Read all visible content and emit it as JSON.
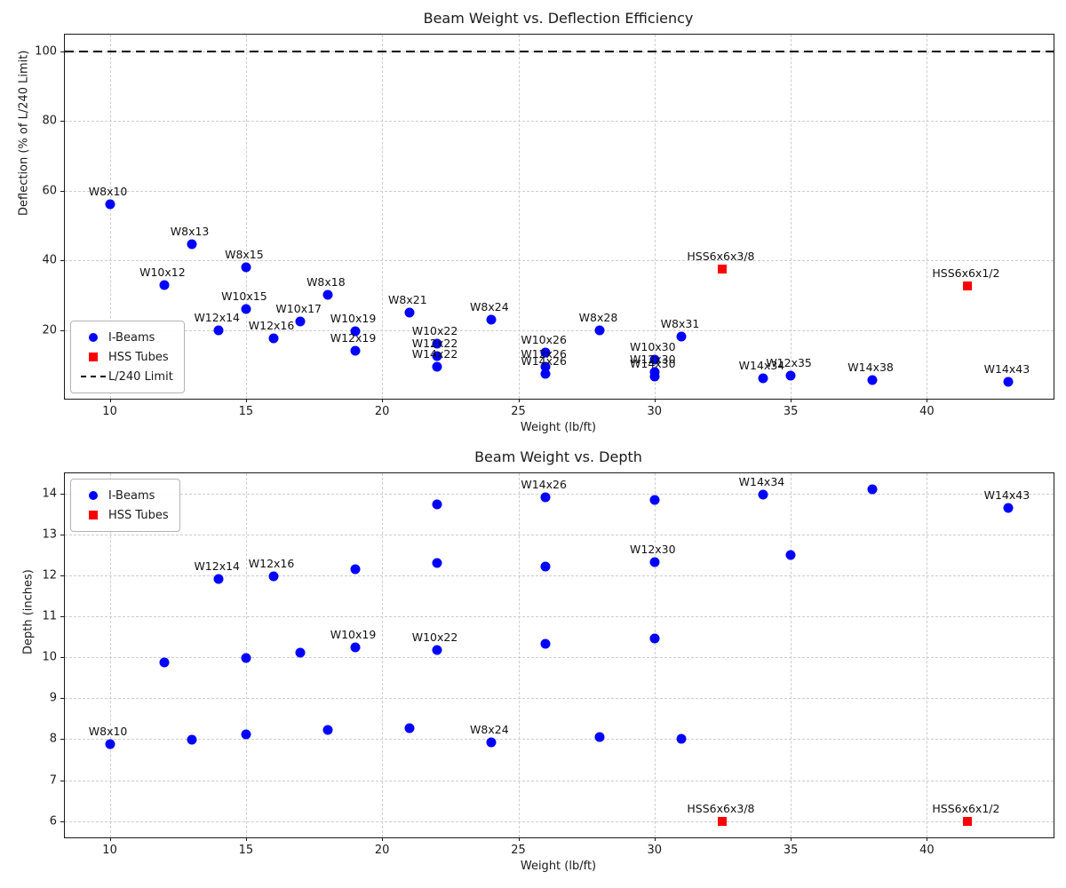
{
  "figure": {
    "background": "#ffffff"
  },
  "colors": {
    "ibeam": "#0000ff",
    "hss": "#ff0000",
    "limit_line": "#000000",
    "grid": "#cdcdcd",
    "text": "#1a1a1a"
  },
  "chart_data": [
    {
      "type": "scatter",
      "title": "Beam Weight vs. Deflection Efficiency",
      "xlabel": "Weight (lb/ft)",
      "ylabel": "Deflection (% of L/240 Limit)",
      "xlim": [
        8.35,
        44.65
      ],
      "ylim": [
        0.25,
        104.75
      ],
      "xticks": [
        10,
        15,
        20,
        25,
        30,
        35,
        40
      ],
      "yticks": [
        20,
        40,
        60,
        80,
        100
      ],
      "grid": true,
      "reference_line": {
        "y": 100,
        "label": "L/240 Limit",
        "color": "#000000",
        "style": "dashed"
      },
      "legend": {
        "position": "lower-left",
        "items": [
          {
            "label": "I-Beams",
            "marker": "circle",
            "color": "#0000ff"
          },
          {
            "label": "HSS Tubes",
            "marker": "square",
            "color": "#ff0000"
          },
          {
            "label": "L/240 Limit",
            "marker": "dashed-line",
            "color": "#000000"
          }
        ]
      },
      "series": [
        {
          "name": "I-Beams",
          "marker": "circle",
          "color": "#0000ff",
          "points": [
            {
              "label": "W8x10",
              "x": 10,
              "y": 56
            },
            {
              "label": "W10x12",
              "x": 12,
              "y": 33
            },
            {
              "label": "W8x13",
              "x": 13,
              "y": 44.5
            },
            {
              "label": "W12x14",
              "x": 14,
              "y": 20
            },
            {
              "label": "W8x15",
              "x": 15,
              "y": 38
            },
            {
              "label": "W10x15",
              "x": 15,
              "y": 26
            },
            {
              "label": "W12x16",
              "x": 16,
              "y": 17.5
            },
            {
              "label": "W10x17",
              "x": 17,
              "y": 22.5
            },
            {
              "label": "W8x18",
              "x": 18,
              "y": 30
            },
            {
              "label": "W10x19",
              "x": 19,
              "y": 19.5
            },
            {
              "label": "W12x19",
              "x": 19,
              "y": 14
            },
            {
              "label": "W8x21",
              "x": 21,
              "y": 25
            },
            {
              "label": "W10x22",
              "x": 22,
              "y": 16
            },
            {
              "label": "W12x22",
              "x": 22,
              "y": 12.5
            },
            {
              "label": "W14x22",
              "x": 22,
              "y": 9.5
            },
            {
              "label": "W8x24",
              "x": 24,
              "y": 23
            },
            {
              "label": "W10x26",
              "x": 26,
              "y": 13.5
            },
            {
              "label": "W12x26",
              "x": 26,
              "y": 9.5
            },
            {
              "label": "W14x26",
              "x": 26,
              "y": 7.5
            },
            {
              "label": "W8x28",
              "x": 28,
              "y": 20
            },
            {
              "label": "W10x30",
              "x": 30,
              "y": 11.5
            },
            {
              "label": "W12x30",
              "x": 30,
              "y": 8
            },
            {
              "label": "W14x30",
              "x": 30,
              "y": 6.5
            },
            {
              "label": "W8x31",
              "x": 31,
              "y": 18
            },
            {
              "label": "W14x34",
              "x": 34,
              "y": 6
            },
            {
              "label": "W12x35",
              "x": 35,
              "y": 7
            },
            {
              "label": "W14x38",
              "x": 38,
              "y": 5.5
            },
            {
              "label": "W14x43",
              "x": 43,
              "y": 5
            }
          ]
        },
        {
          "name": "HSS Tubes",
          "marker": "square",
          "color": "#ff0000",
          "points": [
            {
              "label": "HSS6x6x3/8",
              "x": 32.5,
              "y": 37.5
            },
            {
              "label": "HSS6x6x1/2",
              "x": 41.5,
              "y": 32.5
            }
          ]
        }
      ]
    },
    {
      "type": "scatter",
      "title": "Beam Weight vs. Depth",
      "xlabel": "Weight (lb/ft)",
      "ylabel": "Depth (inches)",
      "xlim": [
        8.35,
        44.65
      ],
      "ylim": [
        5.6,
        14.5
      ],
      "xticks": [
        10,
        15,
        20,
        25,
        30,
        35,
        40
      ],
      "yticks": [
        6,
        7,
        8,
        9,
        10,
        11,
        12,
        13,
        14
      ],
      "grid": true,
      "legend": {
        "position": "upper-left",
        "items": [
          {
            "label": "I-Beams",
            "marker": "circle",
            "color": "#0000ff"
          },
          {
            "label": "HSS Tubes",
            "marker": "square",
            "color": "#ff0000"
          }
        ]
      },
      "series": [
        {
          "name": "I-Beams",
          "marker": "circle",
          "color": "#0000ff",
          "points": [
            {
              "label": "W8x10",
              "x": 10,
              "y": 7.89
            },
            {
              "label": "",
              "x": 12,
              "y": 9.87
            },
            {
              "label": "",
              "x": 13,
              "y": 7.99
            },
            {
              "label": "W12x14",
              "x": 14,
              "y": 11.91
            },
            {
              "label": "",
              "x": 15,
              "y": 8.11
            },
            {
              "label": "",
              "x": 15,
              "y": 9.99
            },
            {
              "label": "W12x16",
              "x": 16,
              "y": 11.99
            },
            {
              "label": "",
              "x": 17,
              "y": 10.11
            },
            {
              "label": "",
              "x": 18,
              "y": 8.22
            },
            {
              "label": "W10x19",
              "x": 19,
              "y": 10.24
            },
            {
              "label": "",
              "x": 19,
              "y": 12.16
            },
            {
              "label": "",
              "x": 21,
              "y": 8.28
            },
            {
              "label": "W10x22",
              "x": 22,
              "y": 10.17
            },
            {
              "label": "",
              "x": 22,
              "y": 12.31
            },
            {
              "label": "",
              "x": 22,
              "y": 13.74
            },
            {
              "label": "W8x24",
              "x": 24,
              "y": 7.93
            },
            {
              "label": "",
              "x": 26,
              "y": 10.33
            },
            {
              "label": "",
              "x": 26,
              "y": 12.22
            },
            {
              "label": "W14x26",
              "x": 26,
              "y": 13.91
            },
            {
              "label": "",
              "x": 28,
              "y": 8.06
            },
            {
              "label": "",
              "x": 30,
              "y": 10.47
            },
            {
              "label": "W12x30",
              "x": 30,
              "y": 12.34
            },
            {
              "label": "",
              "x": 30,
              "y": 13.84
            },
            {
              "label": "",
              "x": 31,
              "y": 8.0
            },
            {
              "label": "W14x34",
              "x": 34,
              "y": 13.98
            },
            {
              "label": "",
              "x": 35,
              "y": 12.5
            },
            {
              "label": "",
              "x": 38,
              "y": 14.1
            },
            {
              "label": "W14x43",
              "x": 43,
              "y": 13.66
            }
          ]
        },
        {
          "name": "HSS Tubes",
          "marker": "square",
          "color": "#ff0000",
          "points": [
            {
              "label": "HSS6x6x3/8",
              "x": 32.5,
              "y": 6.0
            },
            {
              "label": "HSS6x6x1/2",
              "x": 41.5,
              "y": 6.0
            }
          ]
        }
      ]
    }
  ]
}
